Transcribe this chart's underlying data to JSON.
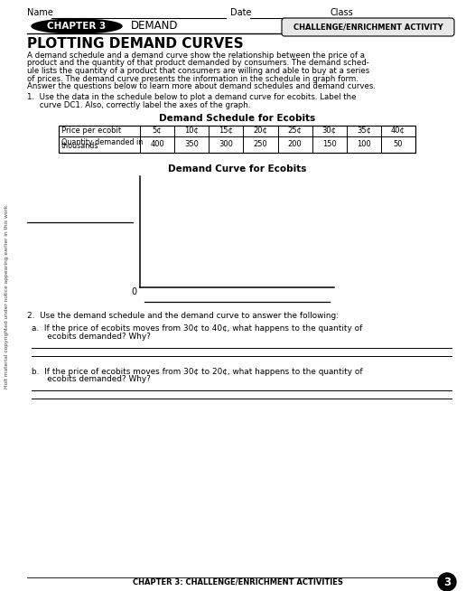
{
  "page_bg": "#ffffff",
  "name_label": "Name",
  "date_label": "Date",
  "class_label": "Class",
  "chapter_tag": "CHAPTER 3",
  "chapter_subtitle": "DEMAND",
  "challenge_label": "CHALLENGE/ENRICHMENT ACTIVITY",
  "title": "PLOTTING DEMAND CURVES",
  "intro_lines": [
    "A demand schedule and a demand curve show the relationship between the price of a",
    "product and the quantity of that product demanded by consumers. The demand sched-",
    "ule lists the quantity of a product that consumers are willing and able to buy at a series",
    "of prices. The demand curve presents the information in the schedule in graph form.",
    "Answer the questions below to learn more about demand schedules and demand curves."
  ],
  "q1_lines": [
    "1.  Use the data in the schedule below to plot a demand curve for ecobits. Label the",
    "     curve DC1. Also, correctly label the axes of the graph."
  ],
  "table_title": "Demand Schedule for Ecobits",
  "table_row1": [
    "Price per ecobit",
    "5¢",
    "10¢",
    "15¢",
    "20¢",
    "25¢",
    "30¢",
    "35¢",
    "40¢"
  ],
  "table_row2_label1": "Quantity demanded in",
  "table_row2_label2": "thousands",
  "table_row2_vals": [
    "400",
    "350",
    "300",
    "250",
    "200",
    "150",
    "100",
    "50"
  ],
  "graph_title": "Demand Curve for Ecobits",
  "q2_text": "2.  Use the demand schedule and the demand curve to answer the following:",
  "qa_lines": [
    "a.  If the price of ecobits moves from 30¢ to 40¢, what happens to the quantity of",
    "      ecobits demanded? Why?"
  ],
  "qb_lines": [
    "b.  If the price of ecobits moves from 30¢ to 20¢, what happens to the quantity of",
    "      ecobits demanded? Why?"
  ],
  "footer_text": "CHAPTER 3: CHALLENGE/ENRICHMENT ACTIVITIES",
  "footer_num": "3",
  "sidebar_text": "Holt material copyrighted under notice appearing earlier in this work."
}
